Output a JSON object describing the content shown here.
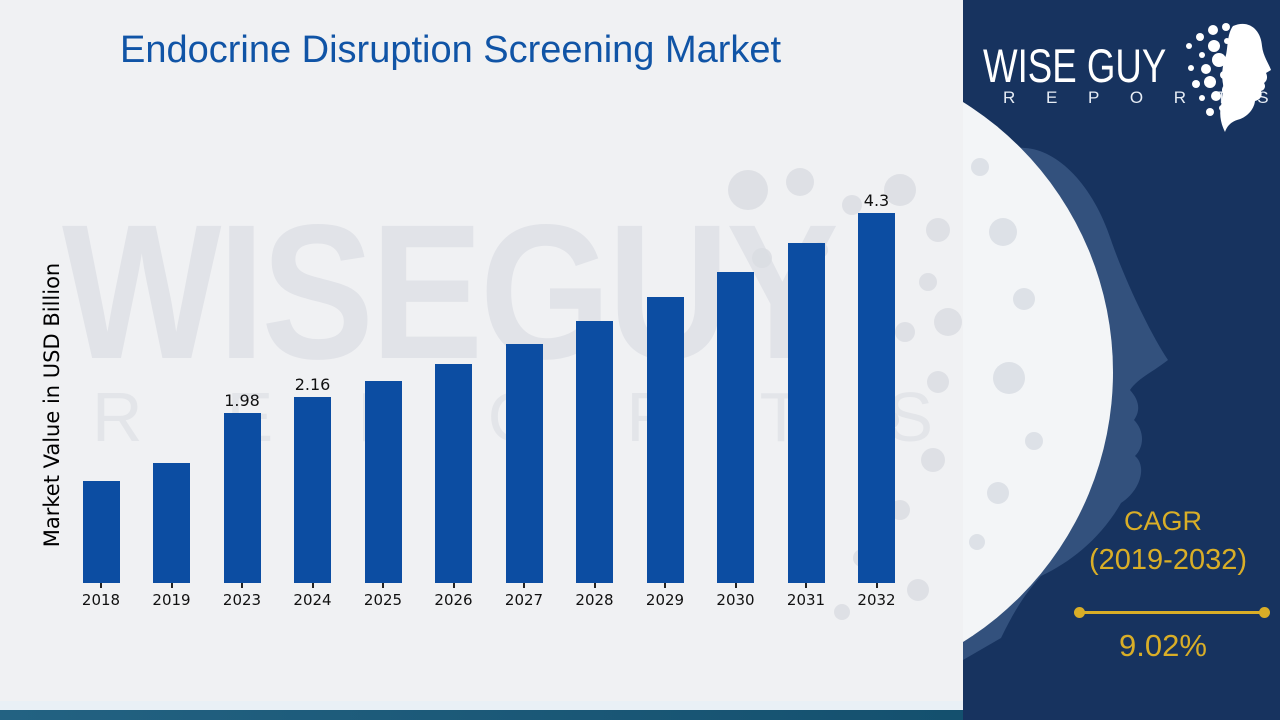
{
  "page": {
    "title": "Endocrine Disruption Screening Market"
  },
  "brand": {
    "name_top": "WISE GUY",
    "name_bottom": "R E P O R T S"
  },
  "watermark": {
    "line1": "WISEGUY",
    "line2": "REPORTS"
  },
  "cagr": {
    "heading": "CAGR",
    "range": "(2019-2032)",
    "value": "9.02%"
  },
  "colors": {
    "title_blue": "#1054a6",
    "bar_blue": "#0c4da2",
    "panel_navy": "#17335f",
    "face_navy": "#33517d",
    "accent_gold": "#d9ae27",
    "bottom_teal": "#1d5c78",
    "background": "#f0f1f3"
  },
  "chart_data": {
    "type": "bar",
    "title": "Endocrine Disruption Screening Market",
    "categories": [
      "2018",
      "2019",
      "2023",
      "2024",
      "2025",
      "2026",
      "2027",
      "2028",
      "2029",
      "2030",
      "2031",
      "2032"
    ],
    "values": [
      1.19,
      1.4,
      1.98,
      2.16,
      2.35,
      2.55,
      2.78,
      3.04,
      3.32,
      3.61,
      3.95,
      4.3
    ],
    "bar_labels": {
      "2023": "1.98",
      "2024": "2.16",
      "2032": "4.3"
    },
    "xlabel": "",
    "ylabel": "Market Value in USD Billion",
    "ylim": [
      0,
      4.5
    ],
    "grid": false,
    "legend": false,
    "bar_color": "#0c4da2",
    "cagr_2019_2032_pct": 9.02
  }
}
